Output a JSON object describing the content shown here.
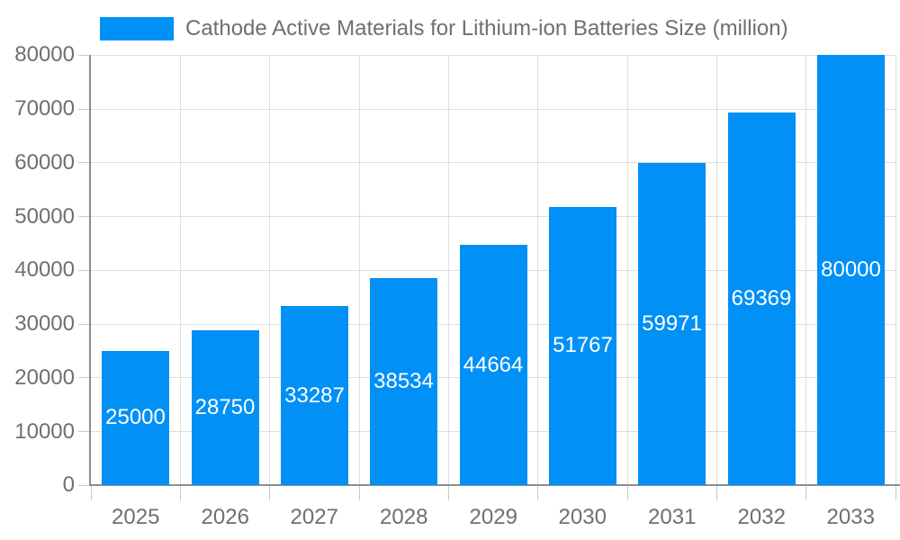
{
  "chart_data": {
    "type": "bar",
    "title": "Cathode Active Materials for Lithium-ion Batteries Size (million)",
    "categories": [
      "2025",
      "2026",
      "2027",
      "2028",
      "2029",
      "2030",
      "2031",
      "2032",
      "2033"
    ],
    "values": [
      25000,
      28750,
      33287,
      38534,
      44664,
      51767,
      59971,
      69369,
      80000
    ],
    "xlabel": "",
    "ylabel": "",
    "ylim": [
      0,
      80000
    ],
    "ytick_step": 10000,
    "ytick_labels": [
      "0",
      "10000",
      "20000",
      "30000",
      "40000",
      "50000",
      "60000",
      "70000",
      "80000"
    ],
    "grid": true,
    "legend_position": "top-left",
    "value_labels_shown": true,
    "colors": {
      "bar": "#0190f5",
      "grid": "#dedede",
      "axis": "#8d8d8d",
      "tick": "#c9c9c9",
      "text": "#6f6f6f",
      "value_label": "#ffffff",
      "background": "#ffffff"
    }
  }
}
